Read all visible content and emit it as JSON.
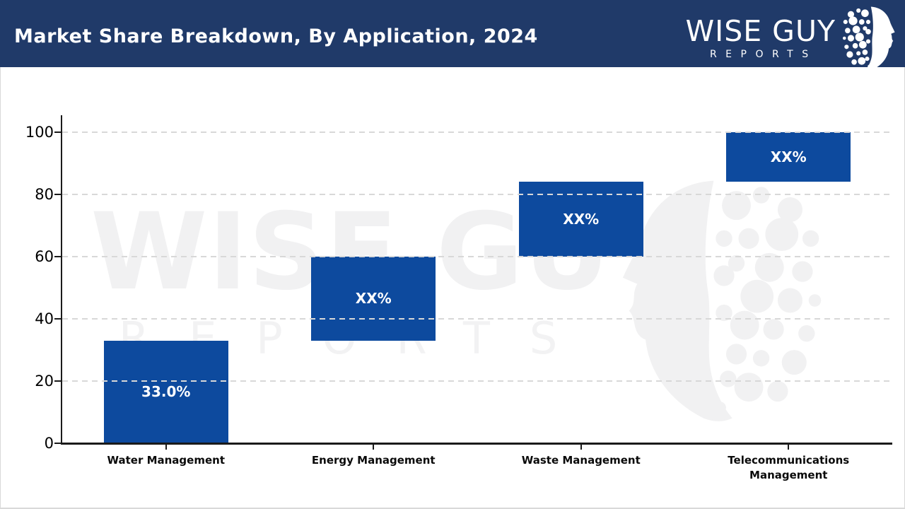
{
  "header": {
    "title": "Market Share Breakdown, By Application, 2024",
    "logo_line1": "WISE GUY",
    "logo_line2": "REPORTS"
  },
  "watermark": {
    "line1": "WISE GUY",
    "line2": "REPORTS"
  },
  "chart_data": {
    "type": "bar",
    "subtype": "floating-segment-waterfall",
    "title": "Market Share Breakdown, By Application, 2024",
    "categories": [
      "Water Management",
      "Energy Management",
      "Waste Management",
      "Telecommunications Management"
    ],
    "series": [
      {
        "name": "Market share (%)",
        "segments": [
          {
            "category": "Water Management",
            "start": 0,
            "end": 33,
            "label": "33.0%"
          },
          {
            "category": "Energy Management",
            "start": 33,
            "end": 60,
            "label": "XX%"
          },
          {
            "category": "Waste Management",
            "start": 60,
            "end": 84,
            "label": "XX%"
          },
          {
            "category": "Telecommunications Management",
            "start": 84,
            "end": 100,
            "label": "XX%"
          }
        ]
      }
    ],
    "yticks": [
      0,
      20,
      40,
      60,
      80,
      100
    ],
    "ylim": [
      0,
      105
    ],
    "xlabel": "",
    "ylabel": "",
    "grid": "horizontal-dashed",
    "legend": "none",
    "colors": {
      "bar": "#0d4a9e",
      "bar_label": "#ffffff",
      "header_bg": "#203a69",
      "axis": "#1a1a1a",
      "gridline": "#d8d8d8",
      "watermark": "#f1f1f2"
    }
  }
}
